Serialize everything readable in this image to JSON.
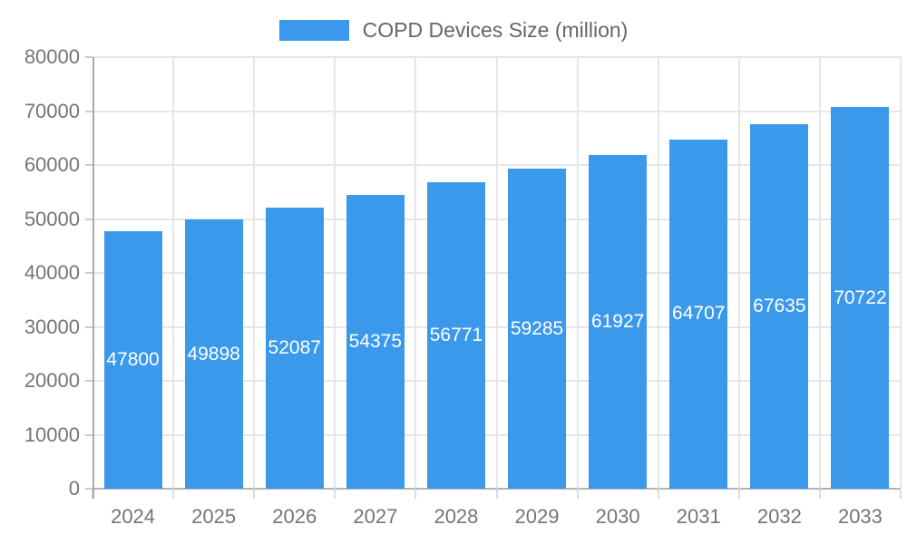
{
  "legend": {
    "label": "COPD Devices Size (million)",
    "swatch_color": "#3B99EC",
    "text_color": "#666666"
  },
  "chart_data": {
    "type": "bar",
    "title": "COPD Devices Size (million)",
    "categories": [
      "2024",
      "2025",
      "2026",
      "2027",
      "2028",
      "2029",
      "2030",
      "2031",
      "2032",
      "2033"
    ],
    "values": [
      47800,
      49898,
      52087,
      54375,
      56771,
      59285,
      61927,
      64707,
      67635,
      70722
    ],
    "value_labels": [
      "47800",
      "49898",
      "52087",
      "54375",
      "56771",
      "59285",
      "61927",
      "64707",
      "67635",
      "70722"
    ],
    "xlabel": "",
    "ylabel": "",
    "ylim": [
      0,
      80000
    ],
    "ytick_step": 10000,
    "yticks": [
      "0",
      "10000",
      "20000",
      "30000",
      "40000",
      "50000",
      "60000",
      "70000",
      "80000"
    ],
    "grid": "horizontal and vertical, light gray",
    "legend_position": "top-center",
    "bar_color": "#3B99EC",
    "value_label_color": "#FFFFFF",
    "value_label_position": "inside-center",
    "axis_text_color": "#757575"
  },
  "colors": {
    "background": "#FFFFFF",
    "grid": "#E6E6E6",
    "axis_line": "#A8A8A8",
    "baseline": "#B3B3B3",
    "tick": "#CCCCCC"
  }
}
